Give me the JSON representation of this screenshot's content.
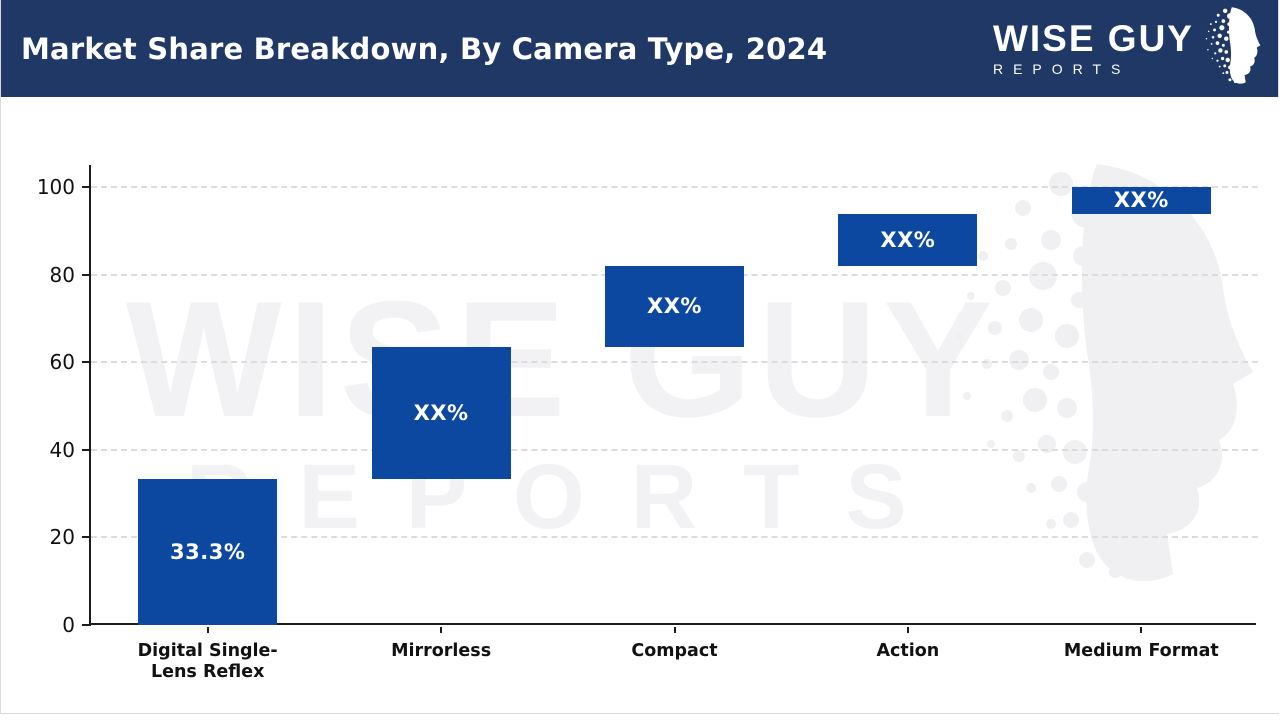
{
  "header": {
    "title": "Market Share Breakdown, By Camera Type, 2024",
    "logo": {
      "wordmark": "WISE GUY",
      "subtitle": "REPORTS"
    }
  },
  "watermark": {
    "wordmark": "WISE GUY",
    "subtitle": "REPORTS"
  },
  "colors": {
    "header_bg": "#203865",
    "bar": "#0c47a0",
    "bar_label": "#ffffff",
    "axis": "#1c1c1c",
    "gridline": "#dcdcdc",
    "watermark": "#f2f2f4",
    "frame_border": "#d9d9d9"
  },
  "chart_data": {
    "type": "bar",
    "subtype": "waterfall",
    "title": "Market Share Breakdown, By Camera Type, 2024",
    "categories": [
      "Digital Single-Lens Reflex",
      "Mirrorless",
      "Compact",
      "Action",
      "Medium Format"
    ],
    "x_tick_labels": [
      "Digital Single-\nLens Reflex",
      "Mirrorless",
      "Compact",
      "Action",
      "Medium Format"
    ],
    "segments": [
      {
        "category": "Digital Single-Lens Reflex",
        "start": 0,
        "end": 33.3,
        "value": 33.3,
        "label": "33.3%"
      },
      {
        "category": "Mirrorless",
        "start": 33.3,
        "end": 63.5,
        "value": 30.2,
        "label": "XX%"
      },
      {
        "category": "Compact",
        "start": 63.5,
        "end": 82.0,
        "value": 18.5,
        "label": "XX%"
      },
      {
        "category": "Action",
        "start": 82.0,
        "end": 93.8,
        "value": 11.8,
        "label": "XX%"
      },
      {
        "category": "Medium Format",
        "start": 93.8,
        "end": 100,
        "value": 6.2,
        "label": "XX%"
      }
    ],
    "xlabel": "",
    "ylabel": "",
    "yticks": [
      0,
      20,
      40,
      60,
      80,
      100
    ],
    "ylim": [
      0,
      105
    ],
    "grid": "horizontal-dashed",
    "legend": "none"
  }
}
